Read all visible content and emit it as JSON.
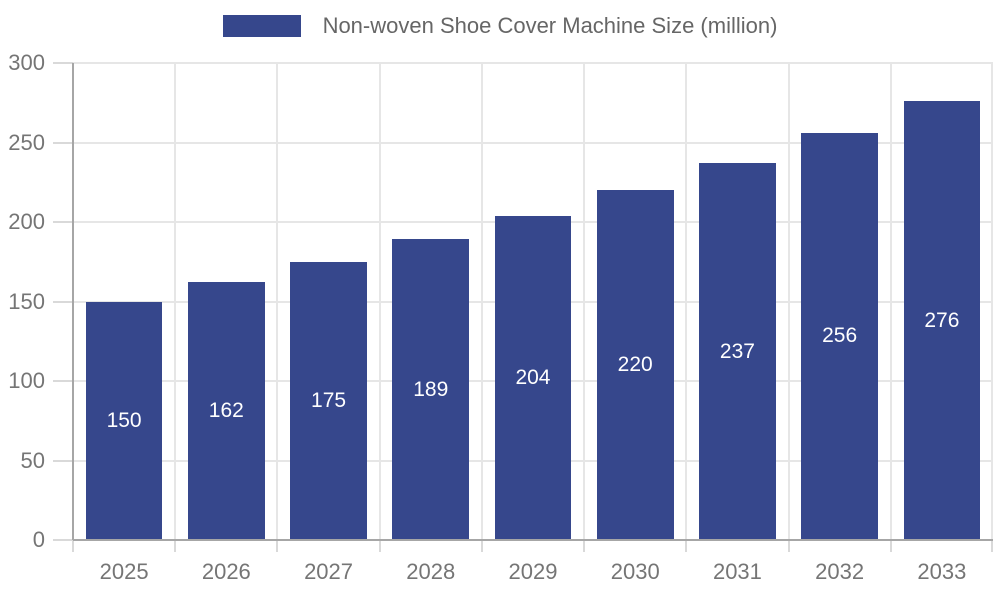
{
  "legend": {
    "label": "Non-woven Shoe Cover Machine Size (million)"
  },
  "chart_data": {
    "type": "bar",
    "title": "Non-woven Shoe Cover Machine Size (million)",
    "categories": [
      "2025",
      "2026",
      "2027",
      "2028",
      "2029",
      "2030",
      "2031",
      "2032",
      "2033"
    ],
    "values": [
      150,
      162,
      175,
      189,
      204,
      220,
      237,
      256,
      276
    ],
    "xlabel": "",
    "ylabel": "",
    "ylim": [
      0,
      300
    ],
    "yticks": [
      0,
      50,
      100,
      150,
      200,
      250,
      300
    ],
    "grid": true,
    "legend_position": "top-center",
    "bar_width_fraction": 0.75,
    "value_labels": "centered-inside-bar",
    "colors": {
      "bar": "#36478C",
      "value_label": "#FFFFFF",
      "grid_line": "#E6E6E6",
      "axis_line": "#A6A6A6",
      "tick_mark": "#D9D9D9",
      "tick_label": "#757575",
      "legend_text": "#666666",
      "background": "#FFFFFF"
    }
  }
}
